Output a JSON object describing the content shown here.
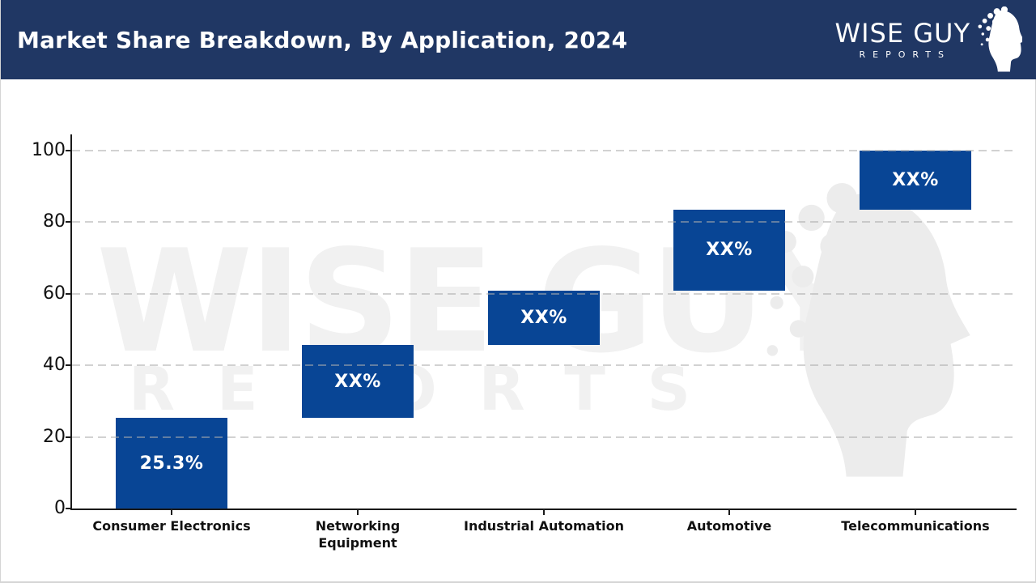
{
  "header": {
    "title": "Market Share Breakdown, By Application, 2024",
    "logo": {
      "brand_top": "WISE GUY",
      "brand_bottom": "REPORTS"
    }
  },
  "watermark": {
    "line1": "WISE GUY",
    "line2": "REPORTS",
    "face_icon": "dotted-head-profile"
  },
  "chart_data": {
    "type": "bar",
    "subtype": "waterfall",
    "title": "Market Share Breakdown, By Application, 2024",
    "categories": [
      "Consumer Electronics",
      "Networking Equipment",
      "Industrial Automation",
      "Automotive",
      "Telecommunications"
    ],
    "segments": [
      {
        "category": "Consumer Electronics",
        "start": 0,
        "end": 25.3,
        "label": "25.3%"
      },
      {
        "category": "Networking Equipment",
        "start": 25.3,
        "end": 45.6,
        "label": "XX%"
      },
      {
        "category": "Industrial Automation",
        "start": 45.6,
        "end": 60.9,
        "label": "XX%"
      },
      {
        "category": "Automotive",
        "start": 60.9,
        "end": 83.5,
        "label": "XX%"
      },
      {
        "category": "Telecommunications",
        "start": 83.5,
        "end": 100,
        "label": "XX%"
      }
    ],
    "y_ticks": [
      0,
      20,
      40,
      60,
      80,
      100
    ],
    "ylim": [
      0,
      104
    ],
    "xlabel": "",
    "ylabel": "",
    "grid": "horizontal-dashed",
    "legend": "none",
    "bar_color": "#084595",
    "bar_label_color": "#ffffff"
  },
  "colors": {
    "header_bg": "#203764",
    "bar": "#084595",
    "grid": "#d9d9d9",
    "axis": "#1a1a1a",
    "watermark": "#f1f1f1",
    "watermark_face": "#ececec"
  }
}
